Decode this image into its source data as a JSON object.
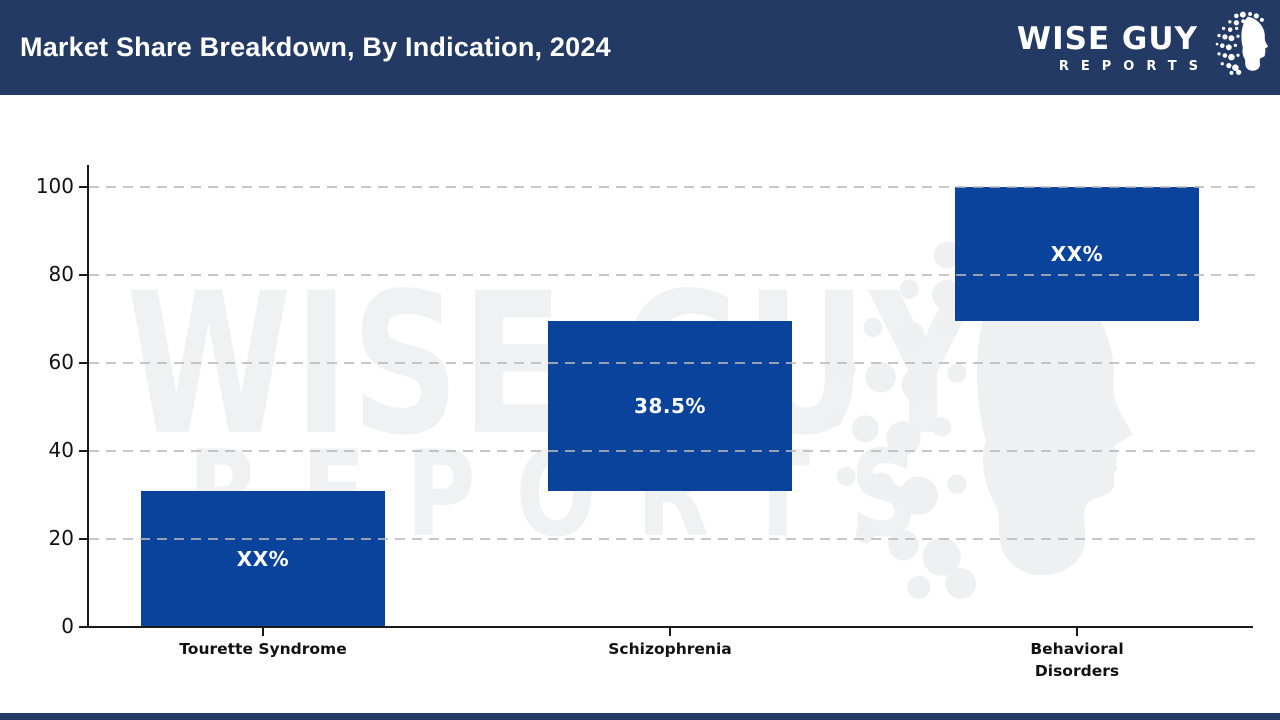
{
  "header": {
    "title": "Market Share Breakdown, By Indication, 2024",
    "bg_color": "#223A64"
  },
  "logo": {
    "line1": "WISE GUY",
    "line2": "REPORTS"
  },
  "watermark": {
    "line1": "WISE GUY",
    "line2": "REPORTS"
  },
  "chart_data": {
    "type": "bar",
    "variant": "floating-waterfall",
    "title": "Market Share Breakdown, By Indication, 2024",
    "categories": [
      "Tourette Syndrome",
      "Schizophrenia",
      "Behavioral Disorders"
    ],
    "tick_labels": [
      "Tourette Syndrome",
      "Schizophrenia",
      "Behavioral\nDisorders"
    ],
    "series": [
      {
        "name": "Market share (%)",
        "segments": [
          {
            "category": "Tourette Syndrome",
            "from": 0,
            "to": 31,
            "label": "XX%"
          },
          {
            "category": "Schizophrenia",
            "from": 31,
            "to": 69.5,
            "label": "38.5%"
          },
          {
            "category": "Behavioral Disorders",
            "from": 69.5,
            "to": 100,
            "label": "XX%"
          }
        ]
      }
    ],
    "ylim": [
      0,
      100
    ],
    "yticks": [
      0,
      20,
      40,
      60,
      80,
      100
    ],
    "xlabel": "",
    "ylabel": "",
    "grid": {
      "horizontal": true,
      "style": "dashed",
      "color": "#d9d9d9"
    },
    "legend": false,
    "colors": {
      "bar": "#0A439C",
      "bar_label": "#ffffff",
      "axis": "#1a1a1a",
      "tick_text": "#111111"
    }
  }
}
